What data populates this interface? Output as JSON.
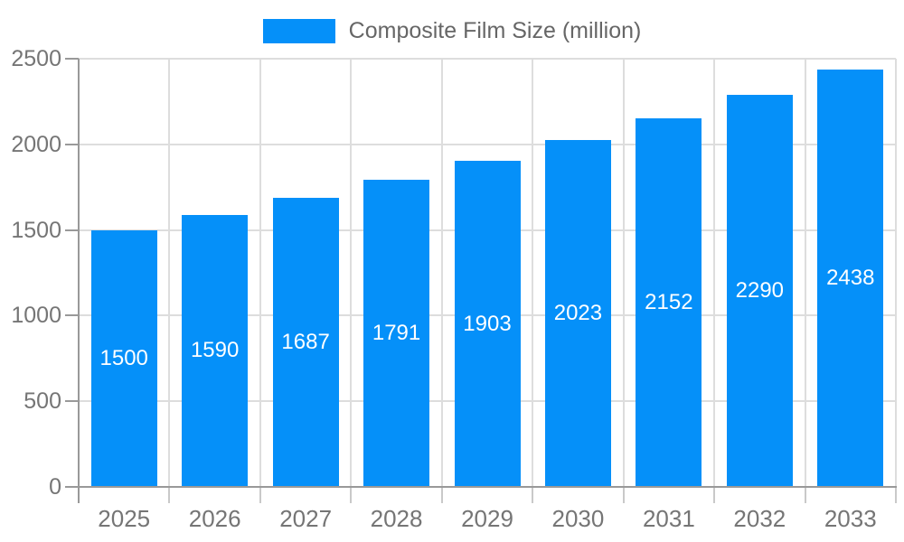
{
  "chart_data": {
    "type": "bar",
    "title": "",
    "xlabel": "",
    "ylabel": "",
    "categories": [
      "2025",
      "2026",
      "2027",
      "2028",
      "2029",
      "2030",
      "2031",
      "2032",
      "2033"
    ],
    "series": [
      {
        "name": "Composite Film Size (million)",
        "values": [
          1500,
          1590,
          1687,
          1791,
          1903,
          2023,
          2152,
          2290,
          2438
        ]
      }
    ],
    "ylim": [
      0,
      2500
    ],
    "y_ticks": [
      0,
      500,
      1000,
      1500,
      2000,
      2500
    ],
    "grid": "both",
    "legend_position": "top-center",
    "bar_value_labels": "white, centered inside bars",
    "colors": {
      "bar": "#0590F9",
      "bar_label_text": "#FFFFFF",
      "axis_line": "#999999",
      "gridline": "#DDDDDD",
      "x_tick_mark": "#C9C9C9",
      "axis_label_text": "#757575",
      "legend_text": "#666666",
      "background": "#FFFFFF"
    }
  },
  "legend": {
    "label": "Composite Film Size (million)"
  }
}
